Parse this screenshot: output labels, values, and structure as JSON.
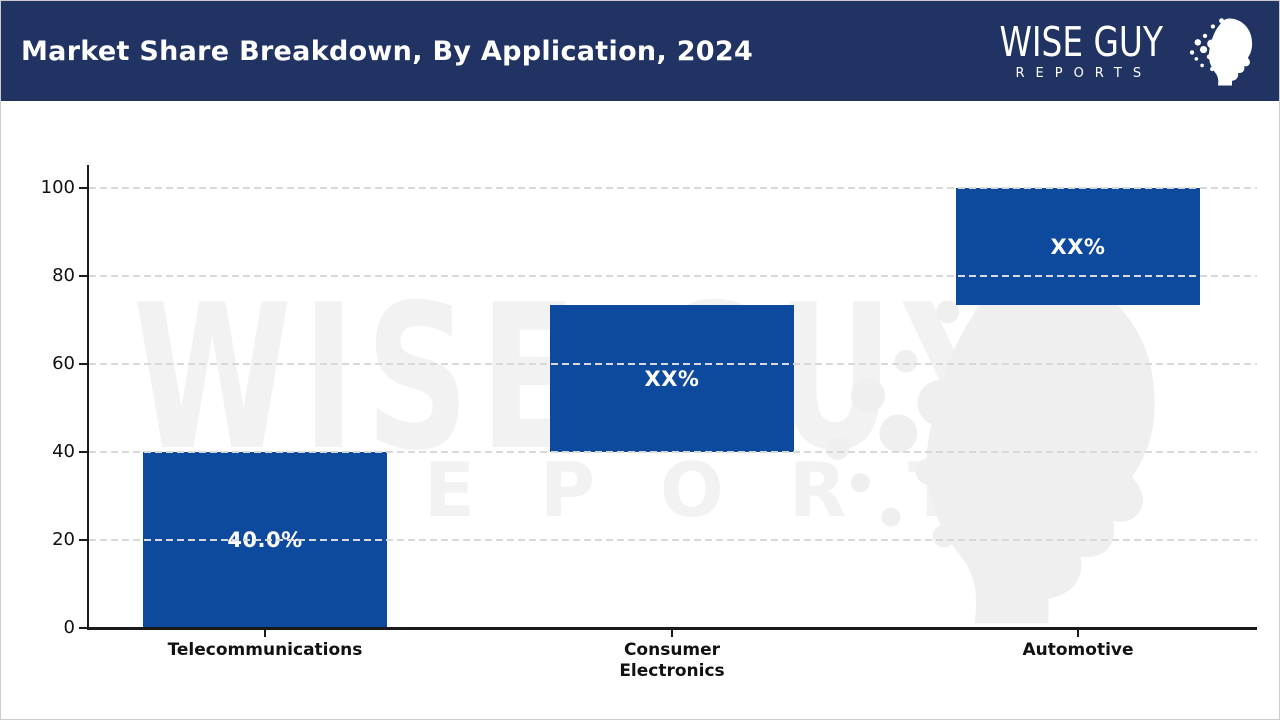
{
  "header": {
    "title": "Market Share Breakdown, By Application, 2024",
    "bg_color": "#213363",
    "logo": {
      "line1": "WISE GUY",
      "line2": "REPORTS"
    }
  },
  "watermark": {
    "line1": "WISE GUY",
    "line2": "REPORTS"
  },
  "chart_data": {
    "type": "bar",
    "subtype": "waterfall",
    "title": "Market Share Breakdown, By Application, 2024",
    "categories": [
      "Telecommunications",
      "Consumer\nElectronics",
      "Automotive"
    ],
    "segments": [
      {
        "category": "Telecommunications",
        "start": 0,
        "end": 40,
        "label": "40.0%"
      },
      {
        "category": "Consumer\nElectronics",
        "start": 40,
        "end": 73.3,
        "label": "XX%"
      },
      {
        "category": "Automotive",
        "start": 73.3,
        "end": 100,
        "label": "XX%"
      }
    ],
    "yticks": [
      0,
      20,
      40,
      60,
      80,
      100
    ],
    "ylim": [
      0,
      105
    ],
    "xlabel": "",
    "ylabel": "",
    "bar_color": "#0d4a9e",
    "bar_label_color": "#ffffff",
    "axis_color": "#1a1a1a",
    "gridline_color": "#d9d9d9",
    "grid": "horizontal-dashed-over-bars",
    "legend": "none"
  }
}
